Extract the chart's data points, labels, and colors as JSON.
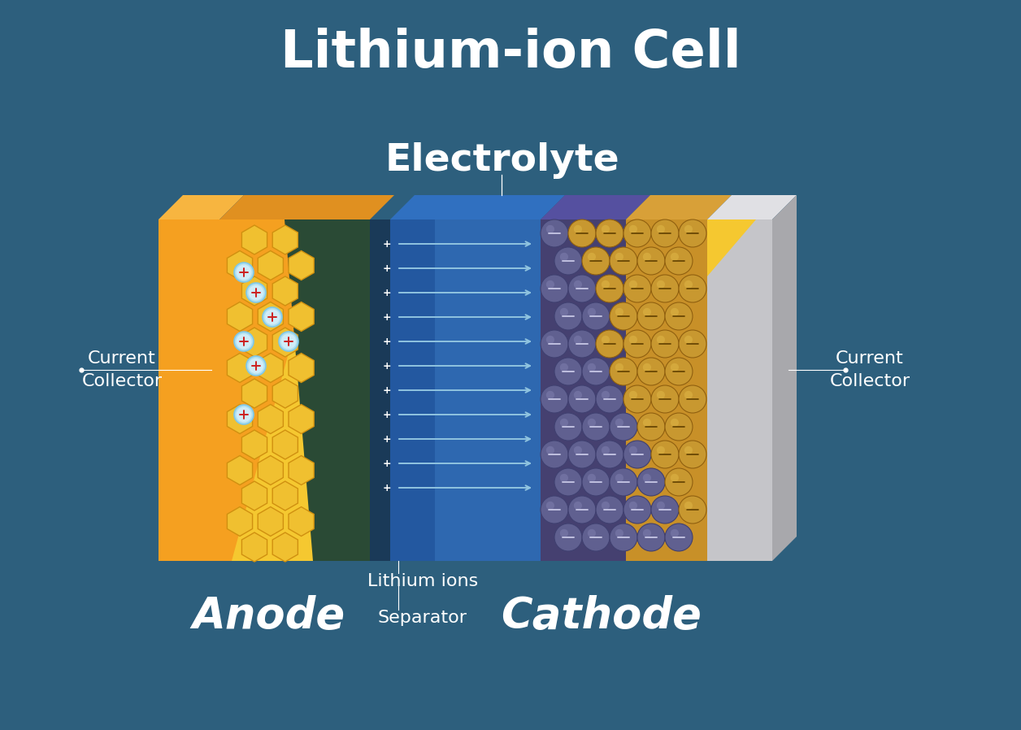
{
  "title": "Lithium-ion Cell",
  "bg_color": "#2d5f7d",
  "title_color": "white",
  "label_anode": "Anode",
  "label_cathode": "Cathode",
  "label_electrolyte": "Electrolyte",
  "label_separator": "Separator",
  "label_lithium_ions": "Lithium ions",
  "label_current_collector_left": "Current\nCollector",
  "label_current_collector_right": "Current\nCollector",
  "orange_color": "#f5a020",
  "yellow_color": "#f5c830",
  "blue_dark": "#1e3d6a",
  "blue_elec": "#2a5f9e",
  "blue_mid": "#3a72b0",
  "cathode_purple": "#5a5080",
  "cathode_gold": "#c8a030",
  "collector_gray_front": "#c5c5c9",
  "collector_gray_top": "#e0e0e4",
  "collector_gray_side": "#a8a8ac",
  "green_dark": "#2a4a35",
  "ion_fill": "#7ecce8",
  "ion_edge": "#5ab0d0",
  "arrow_color": "#90c4e0",
  "white": "#ffffff"
}
